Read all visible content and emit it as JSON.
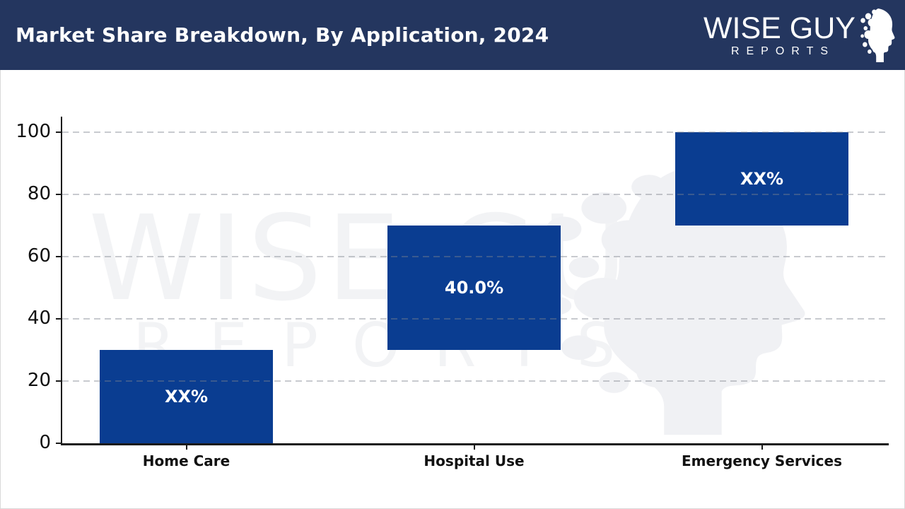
{
  "header": {
    "title": "Market Share Breakdown, By Application, 2024",
    "brand": {
      "line1": "WISE GUY",
      "line2": "REPORTS",
      "head_icon": "dotted-head-profile"
    },
    "colors": {
      "header_bg": "#24365f",
      "title_text": "#ffffff"
    }
  },
  "watermark": {
    "line1": "WISE GUY",
    "line2": "REPORTS",
    "color": "#f2f3f5"
  },
  "chart_data": {
    "type": "bar",
    "subtype": "floating-waterfall",
    "title": "Market Share Breakdown, By Application, 2024",
    "categories": [
      "Home Care",
      "Hospital Use",
      "Emergency Services"
    ],
    "bars": [
      {
        "category": "Home Care",
        "start": 0,
        "end": 30,
        "height": 30,
        "label": "XX%"
      },
      {
        "category": "Hospital Use",
        "start": 30,
        "end": 70,
        "height": 40,
        "label": "40.0%"
      },
      {
        "category": "Emergency Services",
        "start": 70,
        "end": 100,
        "height": 30,
        "label": "XX%"
      }
    ],
    "xlabel": "",
    "ylabel": "",
    "yticks": [
      0,
      20,
      40,
      60,
      80,
      100
    ],
    "ylim": [
      0,
      105
    ],
    "grid": "dashed-horizontal",
    "legend": "none",
    "bar_color": "#0a3d91",
    "bar_label_color": "#ffffff",
    "grid_color": "rgba(125,130,140,0.42)",
    "axis_color": "#1a1a1a"
  }
}
